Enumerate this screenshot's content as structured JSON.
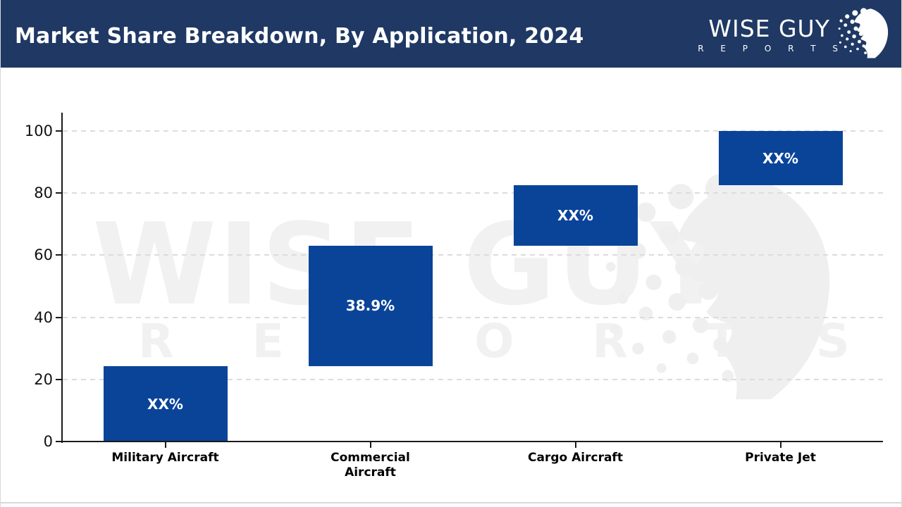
{
  "colors": {
    "header_bg": "#1f3864",
    "bar": "#0a4499",
    "grid": "#dcdcdc",
    "axis": "#1a1a1a",
    "watermark": "#f1f1f1"
  },
  "header": {
    "title": "Market Share Breakdown, By Application, 2024",
    "logo_line1": "WISE GUY",
    "logo_line2": "R E P O R T S"
  },
  "watermark": {
    "line1": "WISE GUY",
    "line2": "R E P O R T S"
  },
  "chart_data": {
    "type": "bar",
    "variant": "floating-stacked-waterfall",
    "title": "Market Share Breakdown, By Application, 2024",
    "categories": [
      "Military Aircraft",
      "Commercial\nAircraft",
      "Cargo Aircraft",
      "Private Jet"
    ],
    "bars": [
      {
        "category": "Military Aircraft",
        "from": 0,
        "to": 24.2,
        "label": "XX%"
      },
      {
        "category": "Commercial Aircraft",
        "from": 24.2,
        "to": 63.1,
        "label": "38.9%"
      },
      {
        "category": "Cargo Aircraft",
        "from": 63.1,
        "to": 82.5,
        "label": "XX%"
      },
      {
        "category": "Private Jet",
        "from": 82.5,
        "to": 100,
        "label": "XX%"
      }
    ],
    "ylim": [
      0,
      100
    ],
    "yticks": [
      0,
      20,
      40,
      60,
      80,
      100
    ],
    "grid": "horizontal-dashed",
    "legend": "none",
    "xlabel": "",
    "ylabel": ""
  }
}
